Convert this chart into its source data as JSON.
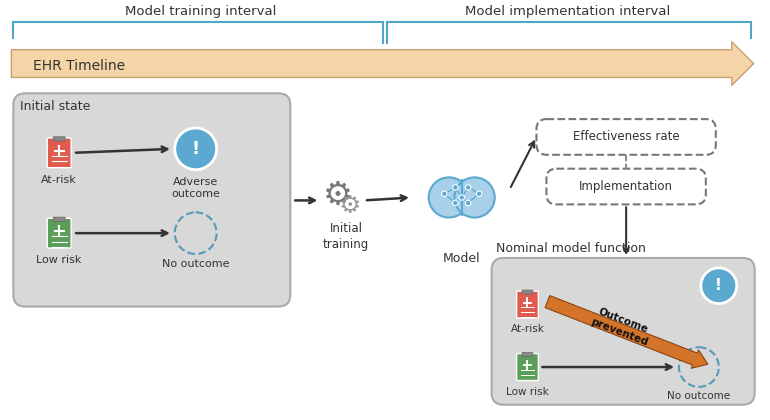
{
  "bg_color": "#ffffff",
  "arrow_fill": "#F5D5A8",
  "arrow_edge": "#C8A070",
  "timeline_text": "EHR Timeline",
  "training_interval_text": "Model training interval",
  "implementation_interval_text": "Model implementation interval",
  "initial_state_text": "Initial state",
  "nominal_model_text": "Nominal model function",
  "clipboard_bg_at_risk": "#E05A4E",
  "clipboard_bg_low": "#5A9E5A",
  "box_bg": "#D8D8D8",
  "box_edge": "#AAAAAA",
  "dashed_box_color": "#777777",
  "blue_circle_color": "#5BA8D0",
  "outcome_arrow_color": "#D4742A",
  "outcome_arrow_edge": "#8B4513",
  "blue_line_color": "#4DA6C8",
  "arrow_color": "#333333",
  "text_color": "#333333",
  "brain_fill": "#A8D0E8",
  "brain_edge": "#5BA8D0",
  "gear_color": "#888888",
  "line_color": "#777777"
}
